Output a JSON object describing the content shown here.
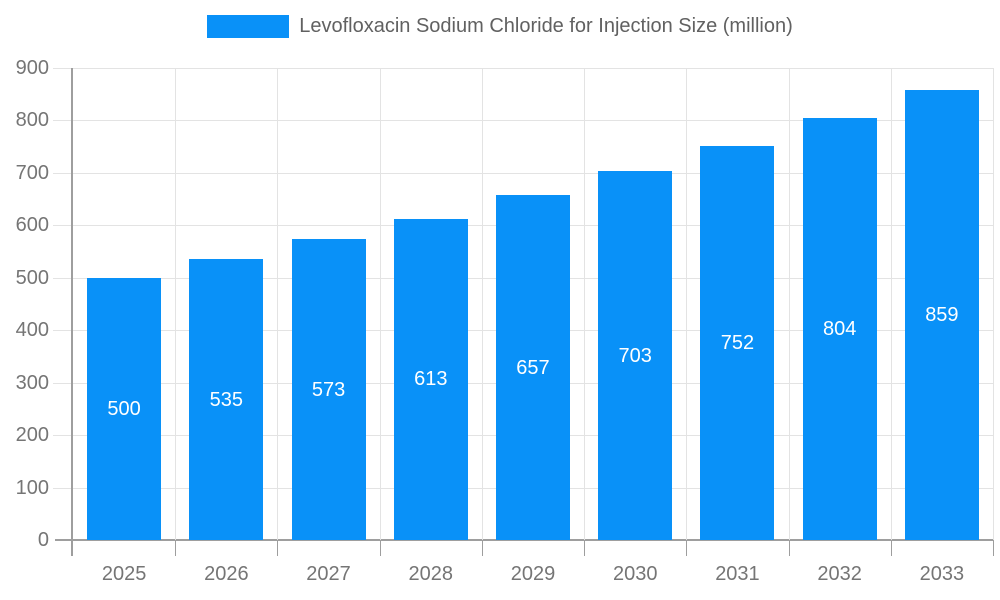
{
  "legend": {
    "label": "Levofloxacin Sodium Chloride for Injection Size (million)"
  },
  "colors": {
    "bar": "#0991f8",
    "legend_text": "#616161",
    "axis_label": "#757575",
    "gridline": "#e3e3e3",
    "axis_line": "#9e9e9e",
    "bar_label": "#ffffff",
    "background": "#ffffff"
  },
  "chart_data": {
    "type": "bar",
    "title": "Levofloxacin Sodium Chloride for Injection Size (million)",
    "categories": [
      "2025",
      "2026",
      "2027",
      "2028",
      "2029",
      "2030",
      "2031",
      "2032",
      "2033"
    ],
    "values": [
      500,
      535,
      573,
      613,
      657,
      703,
      752,
      804,
      859
    ],
    "series_name": "Levofloxacin Sodium Chloride for Injection Size (million)",
    "xlabel": "",
    "ylabel": "",
    "ylim": [
      0,
      900
    ],
    "yticks": [
      0,
      100,
      200,
      300,
      400,
      500,
      600,
      700,
      800,
      900
    ],
    "grid": true,
    "legend_position": "top-center",
    "bar_labels": true,
    "bar_label_position": "middle-of-bar"
  }
}
